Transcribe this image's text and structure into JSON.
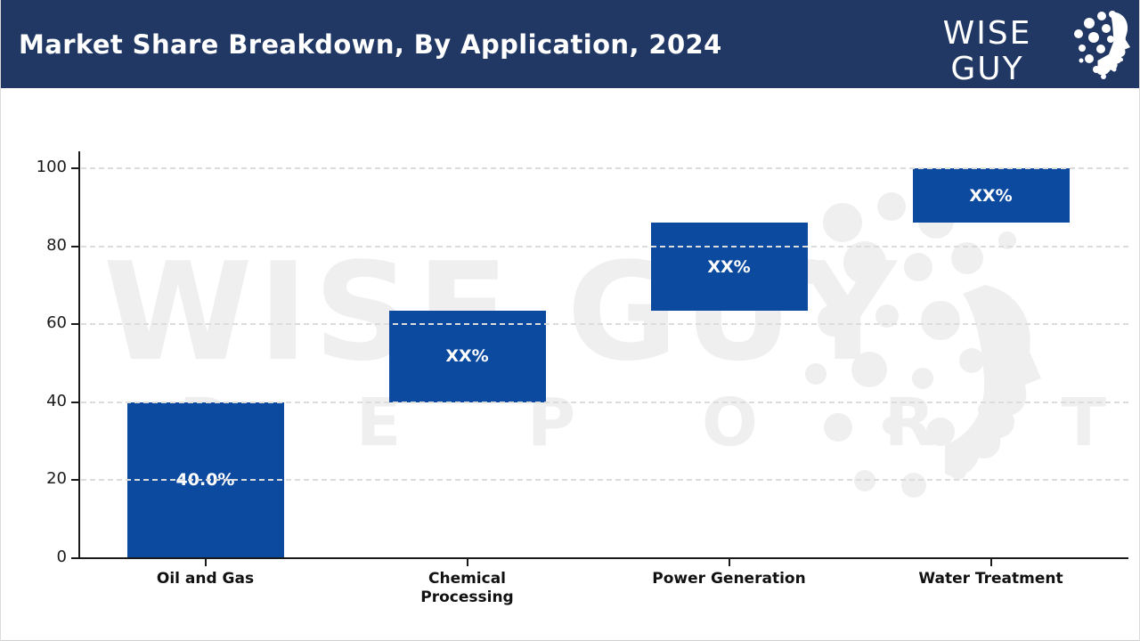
{
  "header": {
    "title": "Market Share Breakdown, By Application, 2024",
    "bg_color": "#213864",
    "logo": {
      "line1": "WISE GUY",
      "line2": "R E P O R T S"
    }
  },
  "watermark": {
    "line1": "WISE GUY",
    "line2": "R E P O R T S",
    "color": "#efefef"
  },
  "chart_data": {
    "type": "bar",
    "variant": "waterfall-floating-bars",
    "title": "Market Share Breakdown, By Application, 2024",
    "categories": [
      "Oil and Gas",
      "Chemical\nProcessing",
      "Power Generation",
      "Water Treatment"
    ],
    "segments": [
      {
        "category": "Oil and Gas",
        "start": 0,
        "end": 40,
        "label": "40.0%"
      },
      {
        "category": "Chemical Processing",
        "start": 40,
        "end": 63.5,
        "label": "XX%"
      },
      {
        "category": "Power Generation",
        "start": 63.5,
        "end": 86,
        "label": "XX%"
      },
      {
        "category": "Water Treatment",
        "start": 86,
        "end": 100,
        "label": "XX%"
      }
    ],
    "ylim": [
      0,
      100
    ],
    "yticks": [
      0,
      20,
      40,
      60,
      80,
      100
    ],
    "xlabel": "",
    "ylabel": "",
    "grid": "horizontal-dashed-over-bars",
    "legend": "none",
    "bar_color": "#0c4aa0",
    "bar_label_color": "#ffffff",
    "axis_color": "#1a1a1a",
    "grid_color": "#dcdcdc"
  }
}
